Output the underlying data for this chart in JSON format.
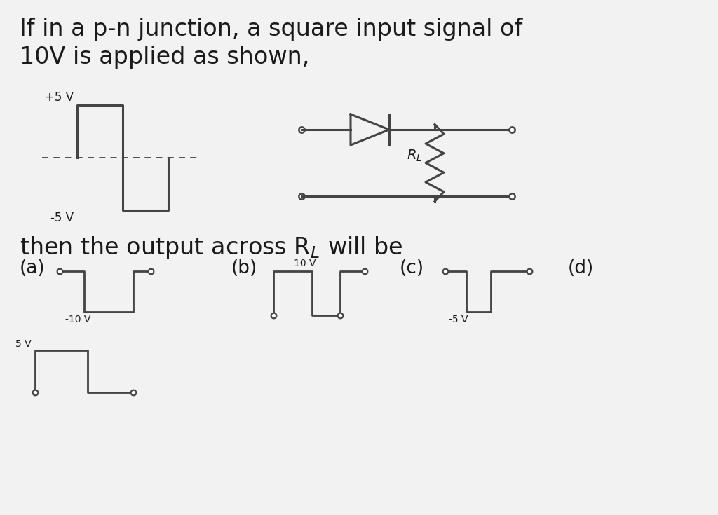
{
  "title_line1": "If in a p-n junction, a square input signal of",
  "title_line2": "10V is applied as shown,",
  "subtitle": "then the output across R$_L$ will be",
  "bg_color": "#f2f2f2",
  "text_color": "#1a1a1a",
  "line_color": "#444444",
  "font_size_title": 24,
  "font_size_option": 19
}
